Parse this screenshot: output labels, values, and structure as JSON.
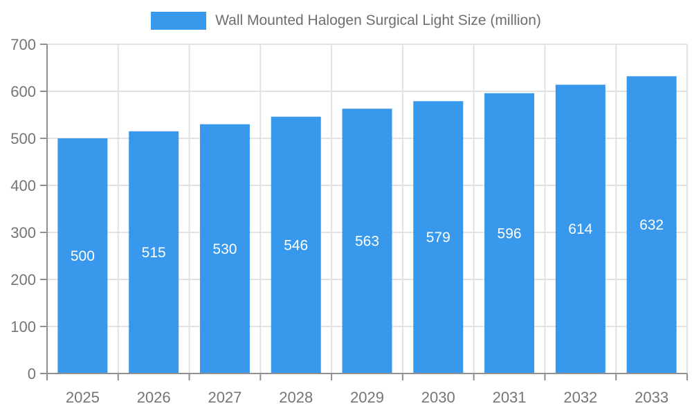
{
  "legend": {
    "label": "Wall Mounted Halogen Surgical Light Size (million)"
  },
  "colors": {
    "bar": "#3898ec",
    "grid": "#e2e2e2",
    "axis": "#8f8f8f",
    "axis_label": "#757575",
    "bar_label": "#ffffff",
    "legend_text": "#6e6e6e",
    "background": "#ffffff"
  },
  "chart_data": {
    "type": "bar",
    "title": "Wall Mounted Halogen Surgical Light Size (million)",
    "categories": [
      "2025",
      "2026",
      "2027",
      "2028",
      "2029",
      "2030",
      "2031",
      "2032",
      "2033"
    ],
    "values": [
      500,
      515,
      530,
      546,
      563,
      579,
      596,
      614,
      632
    ],
    "series_name": "Wall Mounted Halogen Surgical Light Size (million)",
    "xlabel": "",
    "ylabel": "",
    "ylim": [
      0,
      700
    ],
    "ytick_step": 100,
    "ytick_labels": [
      "0",
      "100",
      "200",
      "300",
      "400",
      "500",
      "600",
      "700"
    ],
    "grid": true,
    "legend_position": "top",
    "value_label_position": "inside-center"
  }
}
